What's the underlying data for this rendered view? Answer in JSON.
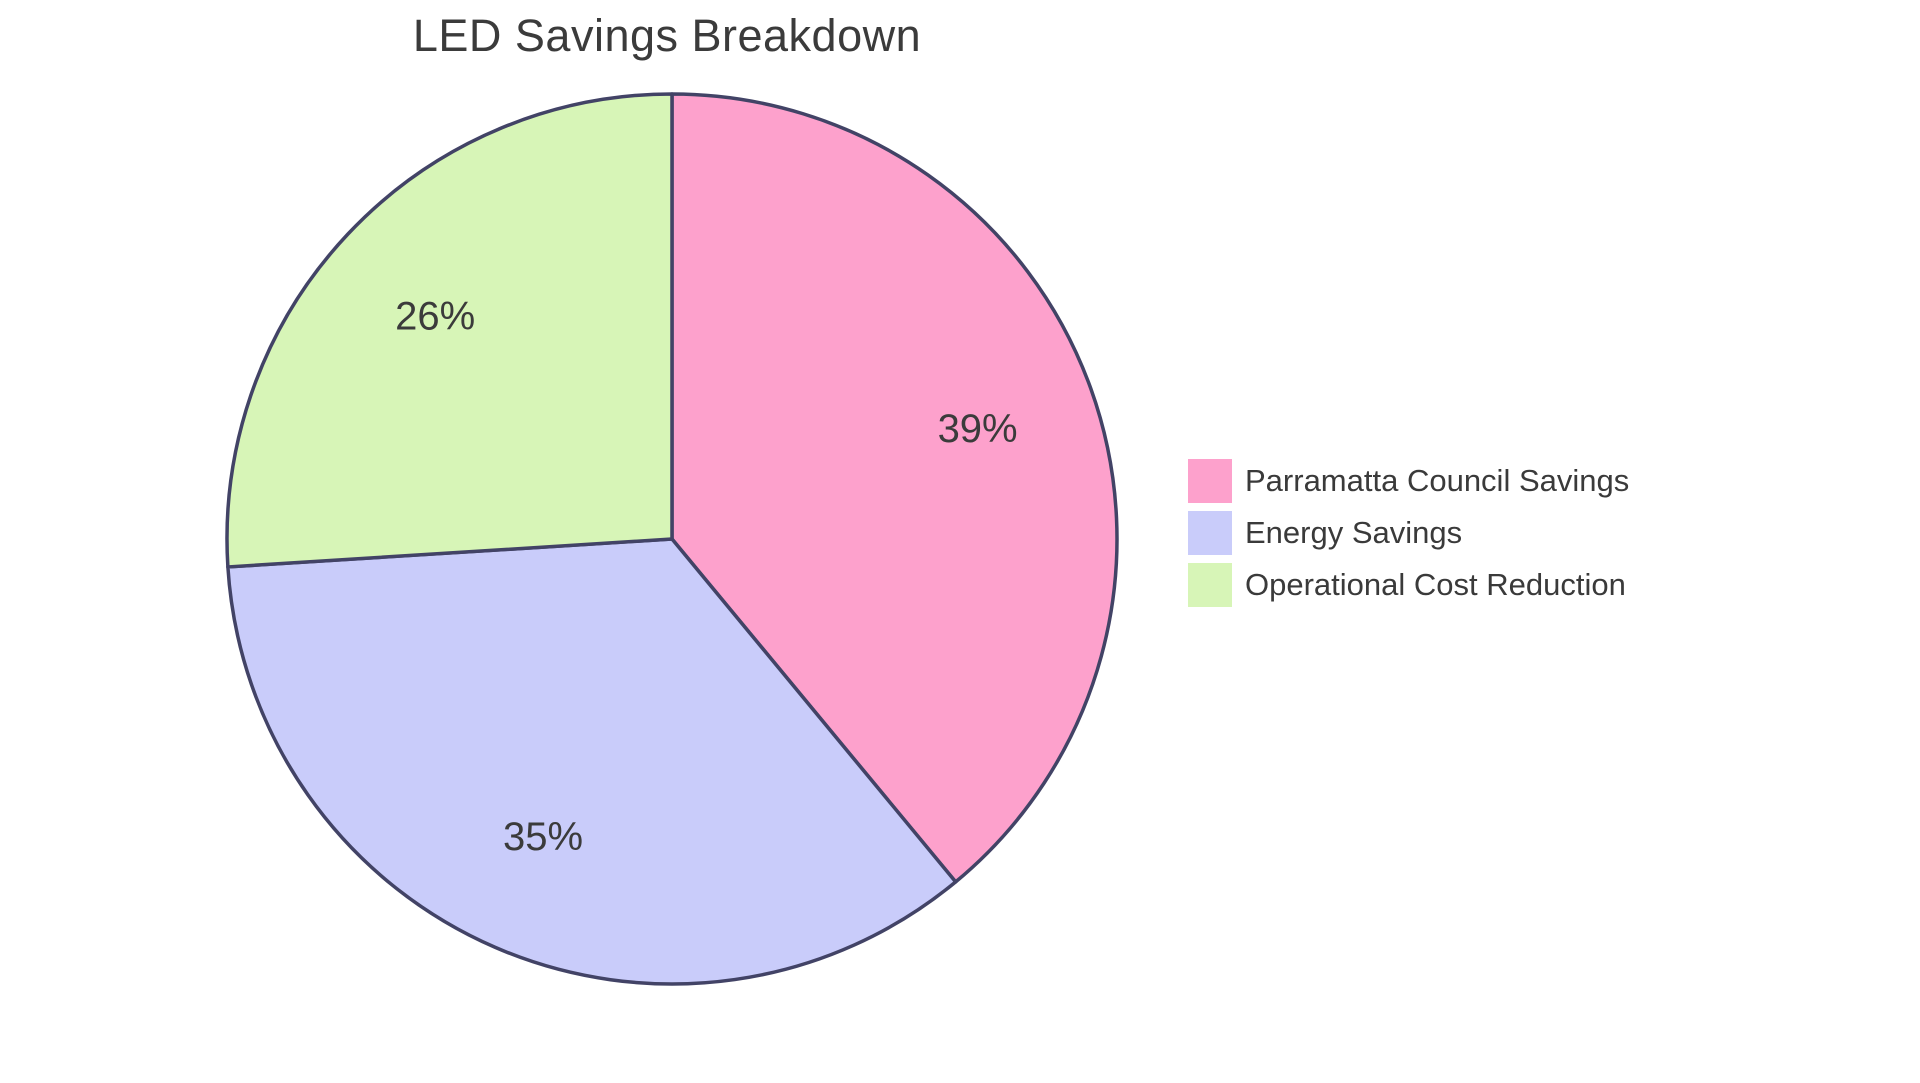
{
  "chart_data": {
    "type": "pie",
    "title": "LED Savings Breakdown",
    "categories": [
      "Parramatta Council Savings",
      "Energy Savings",
      "Operational Cost Reduction"
    ],
    "values": [
      39,
      35,
      26
    ],
    "slice_display_labels": [
      "39%",
      "35%",
      "26%"
    ],
    "slice_colors": [
      "#FDA1CC",
      "#C9CCFA",
      "#D7F5B7"
    ],
    "slice_border_color": "#424366",
    "text_color": "#3B3B3B",
    "background_color": "#FFFFFF",
    "start_position": "top",
    "direction": "clockwise",
    "legend_position": "right",
    "legend_entries": [
      {
        "label": "Parramatta Council Savings",
        "color": "#FDA1CC"
      },
      {
        "label": "Energy Savings",
        "color": "#C9CCFA"
      },
      {
        "label": "Operational Cost Reduction",
        "color": "#D7F5B7"
      }
    ]
  }
}
